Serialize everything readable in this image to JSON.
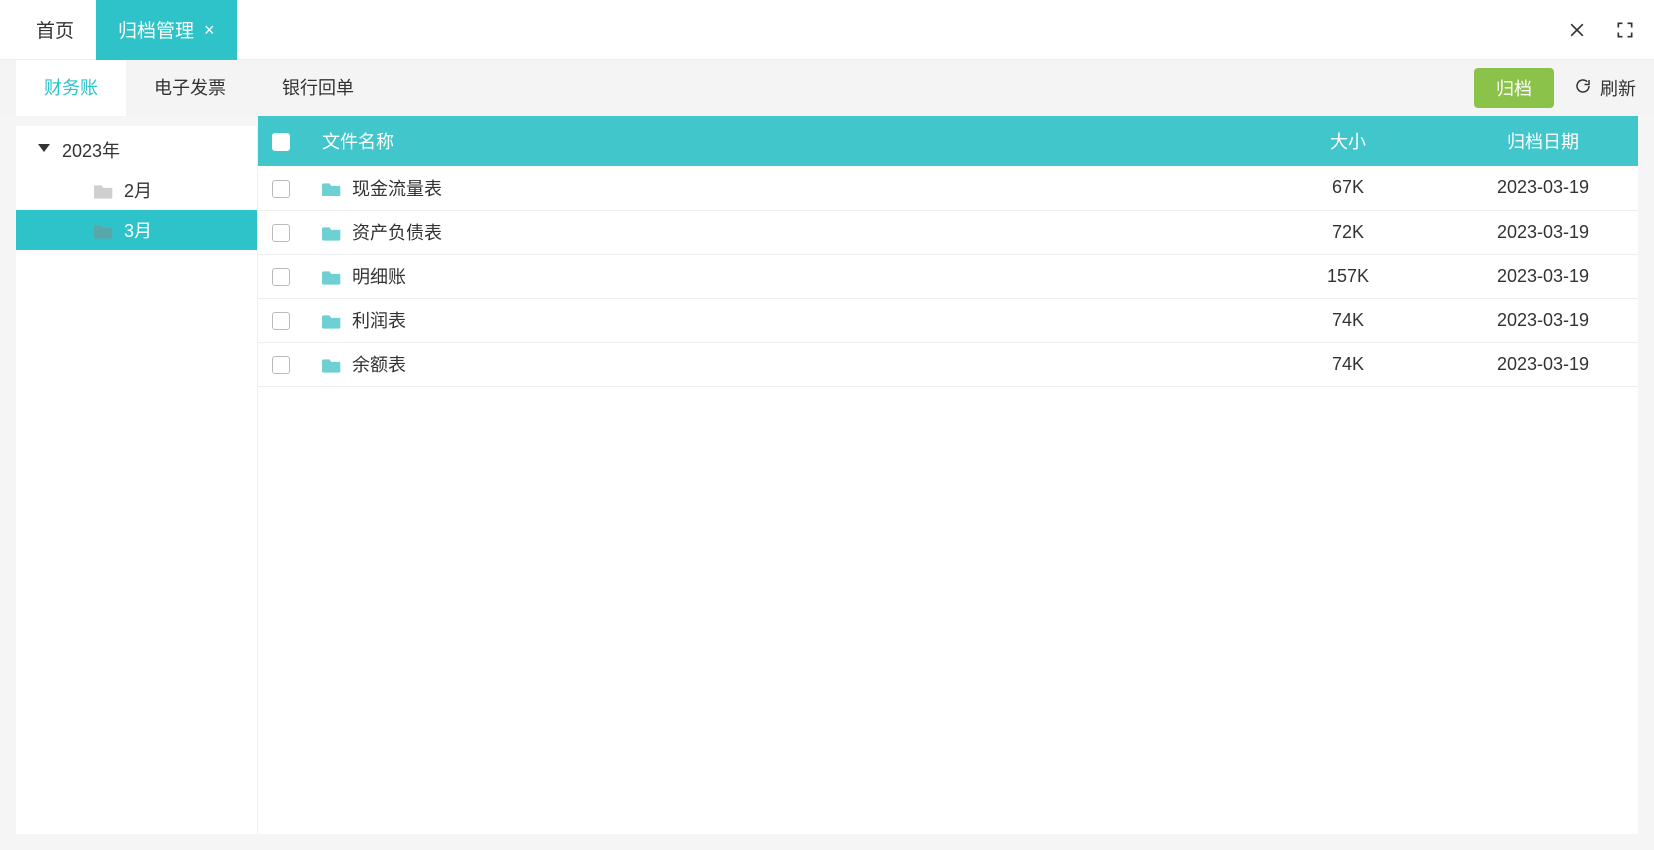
{
  "colors": {
    "accent": "#2dc3c9",
    "header_bg": "#41c6cc",
    "archive_btn": "#8bc34a",
    "page_bg": "#f5f5f5",
    "text": "#333333",
    "border": "#eeeeee"
  },
  "top_tabs": {
    "items": [
      {
        "label": "首页",
        "active": false,
        "closable": false
      },
      {
        "label": "归档管理",
        "active": true,
        "closable": true
      }
    ]
  },
  "sub_tabs": {
    "items": [
      {
        "label": "财务账",
        "active": true
      },
      {
        "label": "电子发票",
        "active": false
      },
      {
        "label": "银行回单",
        "active": false
      }
    ]
  },
  "actions": {
    "archive_label": "归档",
    "refresh_label": "刷新"
  },
  "tree": {
    "year_label": "2023年",
    "months": [
      {
        "label": "2月",
        "selected": false
      },
      {
        "label": "3月",
        "selected": true
      }
    ]
  },
  "table": {
    "columns": {
      "name": "文件名称",
      "size": "大小",
      "date": "归档日期"
    },
    "rows": [
      {
        "name": "现金流量表",
        "size": "67K",
        "date": "2023-03-19"
      },
      {
        "name": "资产负债表",
        "size": "72K",
        "date": "2023-03-19"
      },
      {
        "name": "明细账",
        "size": "157K",
        "date": "2023-03-19"
      },
      {
        "name": "利润表",
        "size": "74K",
        "date": "2023-03-19"
      },
      {
        "name": "余额表",
        "size": "74K",
        "date": "2023-03-19"
      }
    ]
  }
}
